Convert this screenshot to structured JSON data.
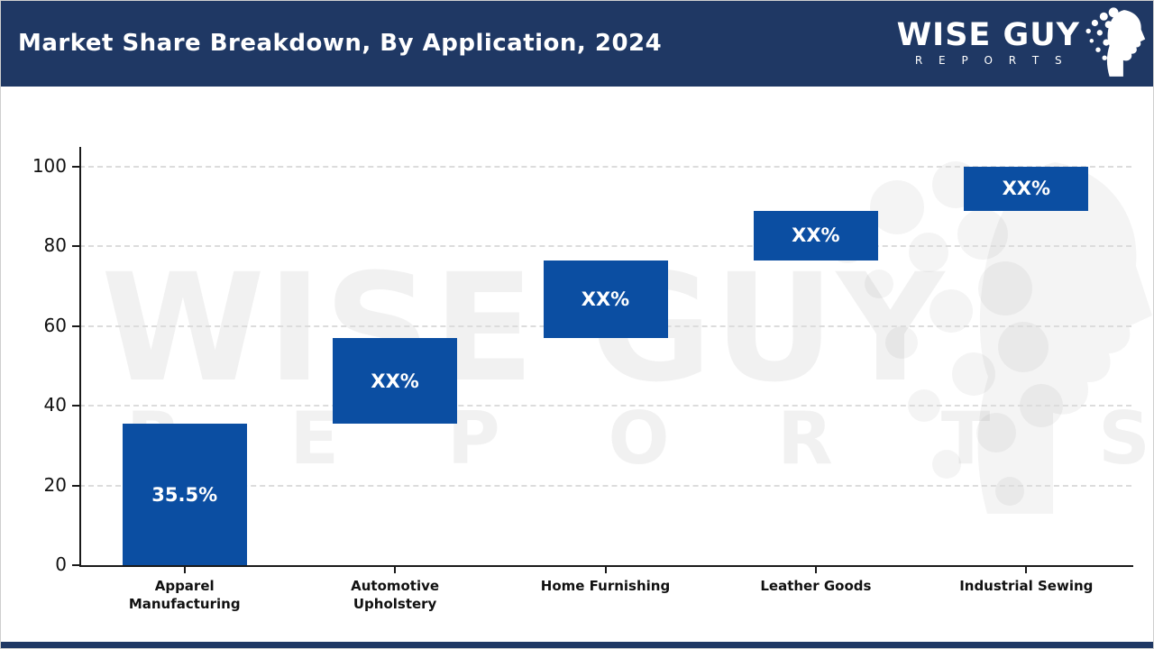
{
  "header": {
    "title": "Market Share Breakdown, By Application, 2024",
    "logo": {
      "line1": "WISE GUY",
      "line2": "R E P O R T S",
      "face_icon": "face-profile-dots"
    }
  },
  "watermark": {
    "line1": "WISE GUY",
    "line2": "R E P O R T S"
  },
  "chart_data": {
    "type": "bar",
    "subtype": "waterfall",
    "title": "Market Share Breakdown, By Application, 2024",
    "categories": [
      "Apparel\nManufacturing",
      "Automotive\nUpholstery",
      "Home Furnishing",
      "Leather Goods",
      "Industrial Sewing"
    ],
    "segments": [
      {
        "category": "Apparel Manufacturing",
        "start": 0,
        "end": 35.5,
        "label": "35.5%"
      },
      {
        "category": "Automotive Upholstery",
        "start": 35.5,
        "end": 57,
        "label": "XX%"
      },
      {
        "category": "Home Furnishing",
        "start": 57,
        "end": 76.5,
        "label": "XX%"
      },
      {
        "category": "Leather Goods",
        "start": 76.5,
        "end": 89,
        "label": "XX%"
      },
      {
        "category": "Industrial Sewing",
        "start": 89,
        "end": 100,
        "label": "XX%"
      }
    ],
    "yticks": [
      0,
      20,
      40,
      60,
      80,
      100
    ],
    "ylim": [
      0,
      100
    ],
    "xlabel": "",
    "ylabel": "",
    "grid": "horizontal-dashed",
    "legend": "none",
    "bar_color": "#0B4EA2",
    "bar_label_color": "#FFFFFF",
    "axis_color": "#1A1A1A",
    "header_color": "#1F3864"
  }
}
